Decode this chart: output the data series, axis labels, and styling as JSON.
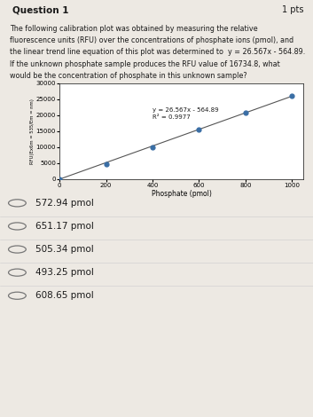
{
  "title": "Question 1",
  "pts": "1 pts",
  "question_text_lines": [
    "The following calibration plot was obtained by measuring the relative",
    "fluorescence units (RFU) over the concentrations of phosphate ions (pmol), and",
    "the linear trend line equation of this plot was determined to  y = 26.567x - 564.89.",
    "If the unknown phosphate sample produces the RFU value of 16734.8, what",
    "would be the concentration of phosphate in this unknown sample?"
  ],
  "scatter_x": [
    0,
    200,
    400,
    600,
    800,
    1000
  ],
  "scatter_y": [
    0,
    4700,
    10100,
    15500,
    20900,
    26000
  ],
  "line_x": [
    0,
    1000
  ],
  "line_slope": 26.567,
  "line_intercept": -564.89,
  "equation_line1": "y = 26.567x - 564.89",
  "equation_line2": "R² = 0.9977",
  "xlabel": "Phosphate (pmol)",
  "ylabel": "RFU(Ex6m = 535/Em = nm)",
  "xlim": [
    0,
    1050
  ],
  "ylim": [
    0,
    30000
  ],
  "xticks": [
    0,
    200,
    400,
    600,
    800,
    1000
  ],
  "yticks": [
    0,
    5000,
    10000,
    15000,
    20000,
    25000,
    30000
  ],
  "scatter_color": "#3a6ea5",
  "line_color": "#555555",
  "dot_size": 12,
  "choices": [
    "572.94 pmol",
    "651.17 pmol",
    "505.34 pmol",
    "493.25 pmol",
    "608.65 pmol"
  ],
  "bg_color": "#ede9e3",
  "plot_bg": "#ffffff",
  "text_color": "#1a1a1a",
  "header_bg": "#d8d4cc",
  "footer_bg": "#2a2520",
  "title_fontsize": 7.5,
  "pts_fontsize": 7.0,
  "body_fontsize": 5.8,
  "tick_fontsize": 5.0,
  "axis_label_fontsize": 5.5,
  "choice_fontsize": 7.5,
  "eq_fontsize": 5.0
}
